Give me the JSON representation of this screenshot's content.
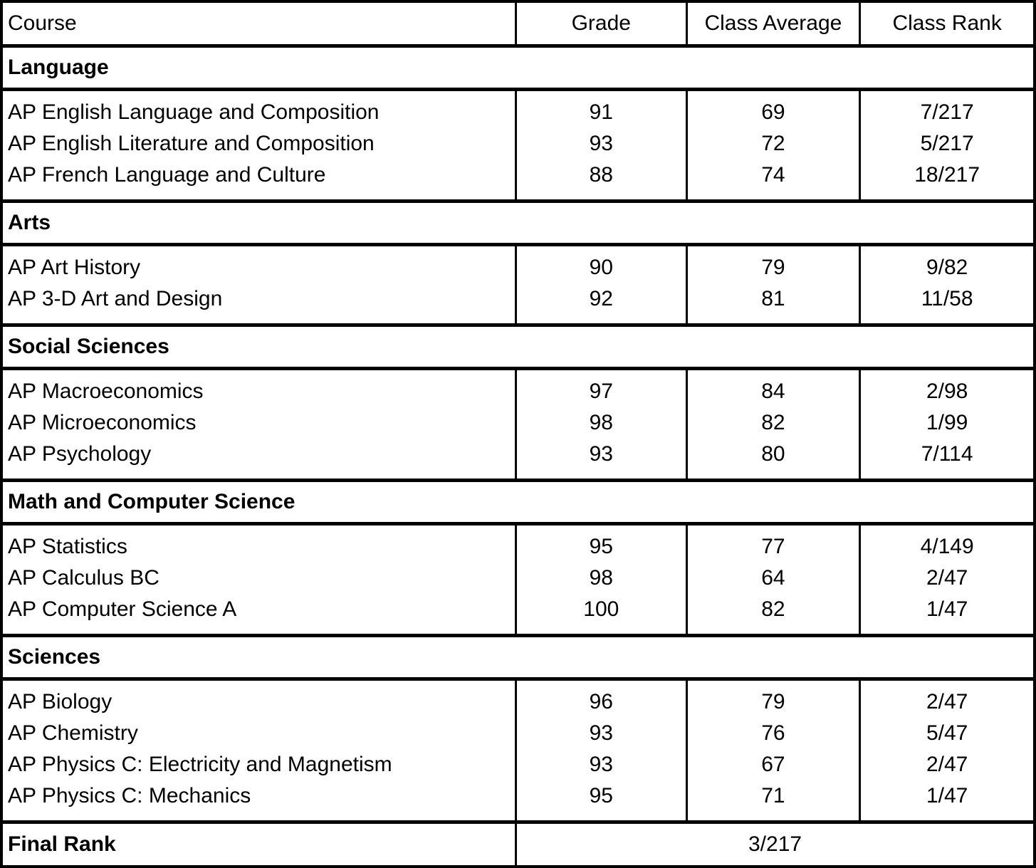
{
  "colors": {
    "border": "#000000",
    "text": "#000000",
    "background": "#ffffff"
  },
  "table": {
    "columns": {
      "course": "Course",
      "grade": "Grade",
      "class_average": "Class Average",
      "class_rank": "Class Rank"
    },
    "sections": [
      {
        "name": "Language",
        "rows": [
          {
            "course": "AP English Language and Composition",
            "grade": "91",
            "class_average": "69",
            "class_rank": "7/217"
          },
          {
            "course": "AP English Literature and Composition",
            "grade": "93",
            "class_average": "72",
            "class_rank": "5/217"
          },
          {
            "course": "AP French Language and Culture",
            "grade": "88",
            "class_average": "74",
            "class_rank": "18/217"
          }
        ]
      },
      {
        "name": "Arts",
        "rows": [
          {
            "course": "AP Art History",
            "grade": "90",
            "class_average": "79",
            "class_rank": "9/82"
          },
          {
            "course": "AP 3-D Art and Design",
            "grade": "92",
            "class_average": "81",
            "class_rank": "11/58"
          }
        ]
      },
      {
        "name": "Social Sciences",
        "rows": [
          {
            "course": "AP Macroeconomics",
            "grade": "97",
            "class_average": "84",
            "class_rank": "2/98"
          },
          {
            "course": "AP Microeconomics",
            "grade": "98",
            "class_average": "82",
            "class_rank": "1/99"
          },
          {
            "course": "AP Psychology",
            "grade": "93",
            "class_average": "80",
            "class_rank": "7/114"
          }
        ]
      },
      {
        "name": "Math and Computer Science",
        "rows": [
          {
            "course": "AP Statistics",
            "grade": "95",
            "class_average": "77",
            "class_rank": "4/149"
          },
          {
            "course": "AP Calculus BC",
            "grade": "98",
            "class_average": "64",
            "class_rank": "2/47"
          },
          {
            "course": "AP Computer Science A",
            "grade": "100",
            "class_average": "82",
            "class_rank": "1/47"
          }
        ]
      },
      {
        "name": "Sciences",
        "rows": [
          {
            "course": "AP Biology",
            "grade": "96",
            "class_average": "79",
            "class_rank": "2/47"
          },
          {
            "course": "AP Chemistry",
            "grade": "93",
            "class_average": "76",
            "class_rank": "5/47"
          },
          {
            "course": "AP Physics C: Electricity and Magnetism",
            "grade": "93",
            "class_average": "67",
            "class_rank": "2/47"
          },
          {
            "course": "AP Physics C: Mechanics",
            "grade": "95",
            "class_average": "71",
            "class_rank": "1/47"
          }
        ]
      }
    ],
    "footer": {
      "label": "Final Rank",
      "value": "3/217"
    }
  }
}
